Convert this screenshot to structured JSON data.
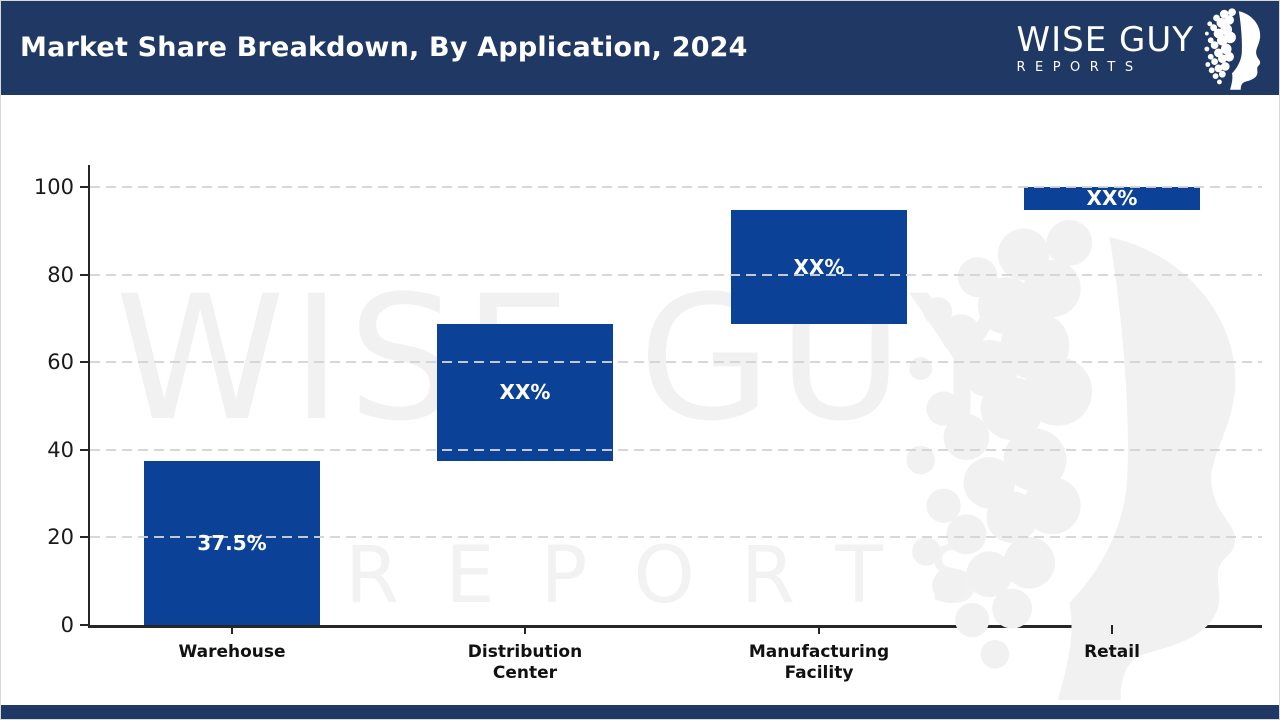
{
  "page": {
    "background": "#ffffff",
    "accent_navy": "#1f3864",
    "frame_border": "#d9d9d9"
  },
  "header": {
    "title": "Market Share Breakdown, By Application, 2024"
  },
  "logo": {
    "line1": "WISE GUY",
    "line2": "REPORTS",
    "head_icon": "dotted-head-icon",
    "color": "#ffffff"
  },
  "watermark": {
    "line1": "WISE GUY",
    "line2": "REPORTS",
    "head_icon": "dotted-head-icon"
  },
  "chart_data": {
    "type": "bar",
    "subtype": "waterfall",
    "title": "Market Share Breakdown, By Application, 2024",
    "categories": [
      "Warehouse",
      "Distribution\nCenter",
      "Manufacturing\nFacility",
      "Retail"
    ],
    "segments": [
      {
        "category": "Warehouse",
        "start": 0,
        "end": 37.5,
        "label": "37.5%"
      },
      {
        "category": "Distribution Center",
        "start": 37.5,
        "end": 68.75,
        "label": "XX%"
      },
      {
        "category": "Manufacturing Facility",
        "start": 68.75,
        "end": 94.75,
        "label": "XX%"
      },
      {
        "category": "Retail",
        "start": 94.75,
        "end": 100,
        "label": "XX%"
      }
    ],
    "yticks": [
      0,
      20,
      40,
      60,
      80,
      100
    ],
    "ylim": [
      0,
      105
    ],
    "xlabel": "",
    "ylabel": "",
    "grid": "dashed-horizontal-over-bars",
    "legend": null,
    "bar_color": "#0b4297",
    "bar_label_color": "#ffffff",
    "axis_color": "#262626",
    "grid_color": "#d9d9d9",
    "tick_label_color": "#1a1a1a"
  }
}
